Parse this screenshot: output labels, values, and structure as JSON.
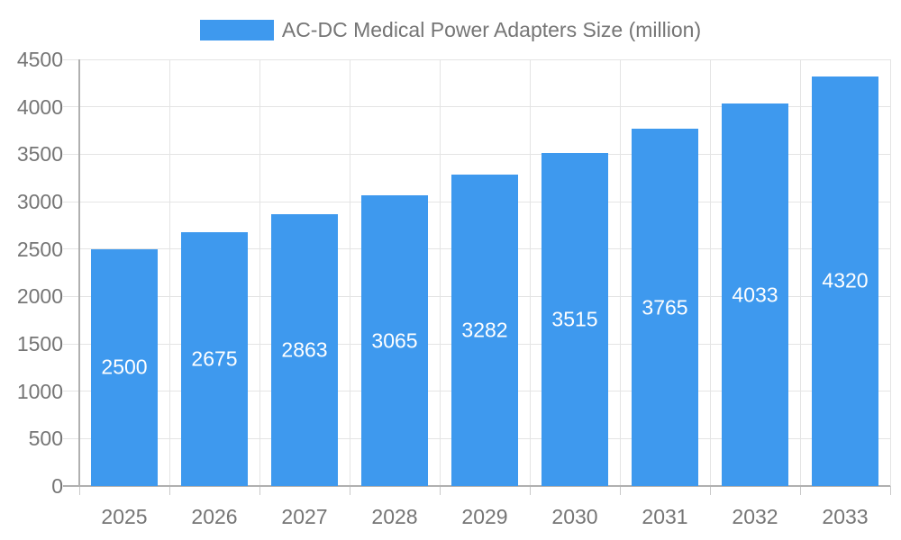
{
  "legend": {
    "label": "AC-DC Medical Power Adapters Size (million)"
  },
  "chart_data": {
    "type": "bar",
    "title": "AC-DC Medical Power Adapters Size (million)",
    "categories": [
      "2025",
      "2026",
      "2027",
      "2028",
      "2029",
      "2030",
      "2031",
      "2032",
      "2033"
    ],
    "values": [
      2500,
      2675,
      2863,
      3065,
      3282,
      3515,
      3765,
      4033,
      4320
    ],
    "xlabel": "",
    "ylabel": "",
    "ylim": [
      0,
      4500
    ],
    "ytick_step": 500,
    "grid": true,
    "legend_position": "top-center",
    "value_labels": "inside-center",
    "colors": {
      "bar": "#3E99EE",
      "axis_text": "#757575",
      "legend_text": "#757575",
      "grid_line": "#e4e4e4",
      "axis_line": "#b0b0b0",
      "tick_line": "#c9c9c9",
      "value_label": "#ffffff",
      "background": "#ffffff"
    }
  }
}
